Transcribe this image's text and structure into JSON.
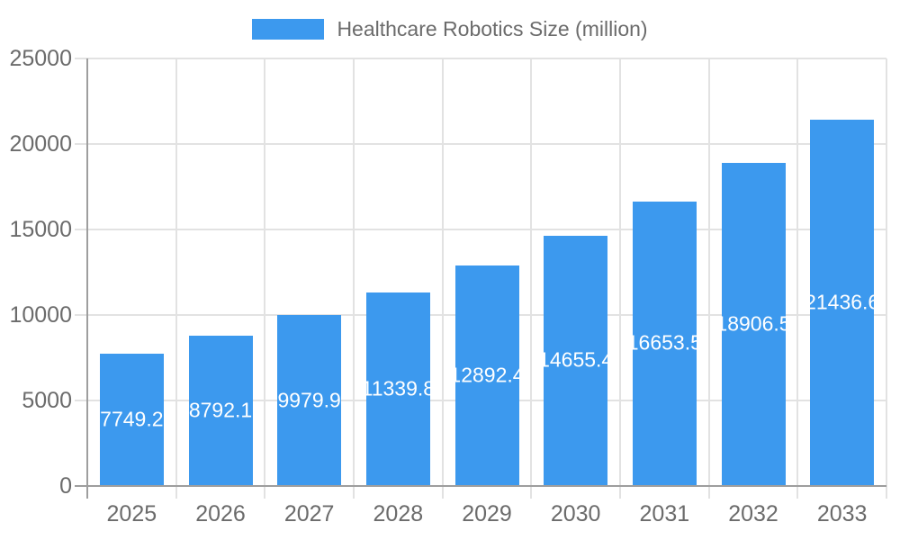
{
  "chart_data": {
    "type": "bar",
    "title": "Healthcare Robotics Size (million)",
    "categories": [
      "2025",
      "2026",
      "2027",
      "2028",
      "2029",
      "2030",
      "2031",
      "2032",
      "2033"
    ],
    "series": [
      {
        "name": "Healthcare Robotics Size (million)",
        "values": [
          7749.2,
          8792.1,
          9979.9,
          11339.8,
          12892.4,
          14655.4,
          16653.5,
          18906.5,
          21436.6
        ]
      }
    ],
    "value_labels": [
      "7749.2",
      "8792.1",
      "9979.9",
      "11339.8",
      "12892.4",
      "14655.4",
      "16653.5",
      "18906.5",
      "21436.6"
    ],
    "xlabel": "",
    "ylabel": "",
    "ylim": [
      0,
      25000
    ],
    "y_ticks": [
      0,
      5000,
      10000,
      15000,
      20000,
      25000
    ],
    "y_tick_labels": [
      "0",
      "5000",
      "10000",
      "15000",
      "20000",
      "25000"
    ],
    "grid": true,
    "legend_position": "top-center",
    "colors": {
      "bar": "#3C99EE",
      "grid": "#E2E2E2",
      "axis": "#9E9E9E",
      "tick_text": "#6B6B6B",
      "value_label": "#FFFFFF",
      "background": "#FFFFFF"
    }
  }
}
